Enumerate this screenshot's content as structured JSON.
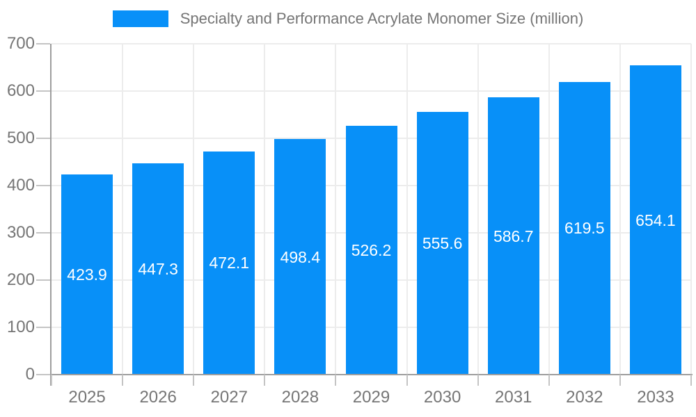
{
  "chart_data": {
    "type": "bar",
    "title": "Specialty and Performance Acrylate Monomer Size (million)",
    "categories": [
      "2025",
      "2026",
      "2027",
      "2028",
      "2029",
      "2030",
      "2031",
      "2032",
      "2033"
    ],
    "values": [
      423.9,
      447.3,
      472.1,
      498.4,
      526.2,
      555.6,
      586.7,
      619.5,
      654.1
    ],
    "value_labels": [
      "423.9",
      "447.3",
      "472.1",
      "498.4",
      "526.2",
      "555.6",
      "586.7",
      "619.5",
      "654.1"
    ],
    "xlabel": "",
    "ylabel": "",
    "ylim": [
      0,
      700
    ],
    "ytick_interval": 100,
    "ytick_labels": [
      "0",
      "100",
      "200",
      "300",
      "400",
      "500",
      "600",
      "700"
    ],
    "grid": true,
    "legend_position": "top",
    "colors": {
      "bar": "#0890f8",
      "value_label": "#ffffff",
      "axis_text": "#757575",
      "title_text": "#757575",
      "gridline": "#ececec",
      "axis_line": "#9e9e9e",
      "tick": "#c4c4c4"
    }
  }
}
